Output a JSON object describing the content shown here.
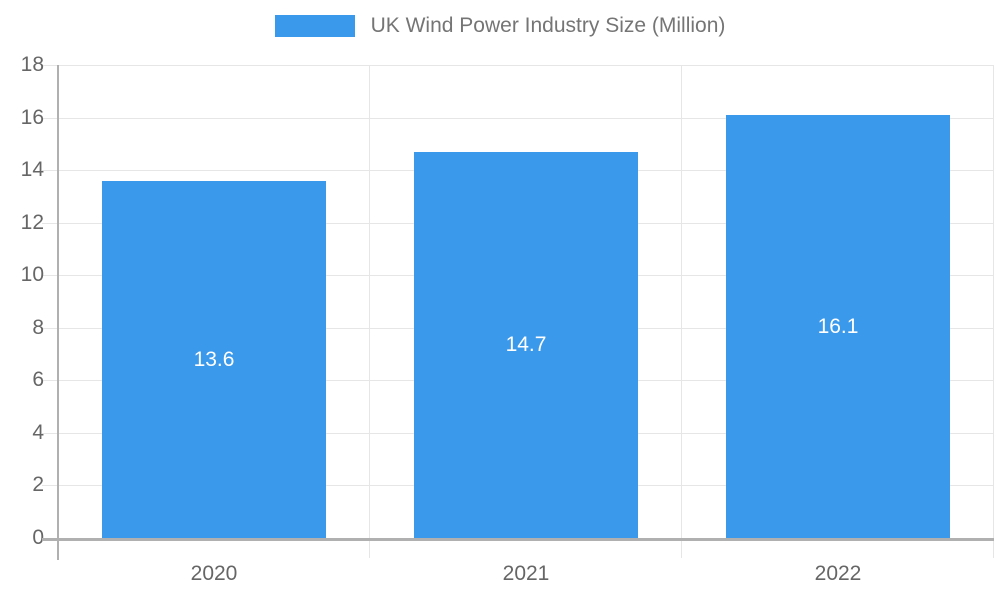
{
  "legend": {
    "label": "UK Wind Power Industry Size (Million)"
  },
  "chart_data": {
    "type": "bar",
    "title": "UK Wind Power Industry Size (Million)",
    "categories": [
      "2020",
      "2021",
      "2022"
    ],
    "values": [
      13.6,
      14.7,
      16.1
    ],
    "value_labels": [
      "13.6",
      "14.7",
      "16.1"
    ],
    "xlabel": "",
    "ylabel": "",
    "ylim": [
      0,
      18
    ],
    "yticks": [
      0,
      2,
      4,
      6,
      8,
      10,
      12,
      14,
      16,
      18
    ],
    "grid": true,
    "legend_position": "top",
    "colors": {
      "bar": "#3b99ec",
      "value_label": "#ffffff",
      "gridline": "#e6e6e6",
      "axis": "#b0b0b0",
      "tick_label": "#666666",
      "legend_label": "#757575"
    }
  }
}
